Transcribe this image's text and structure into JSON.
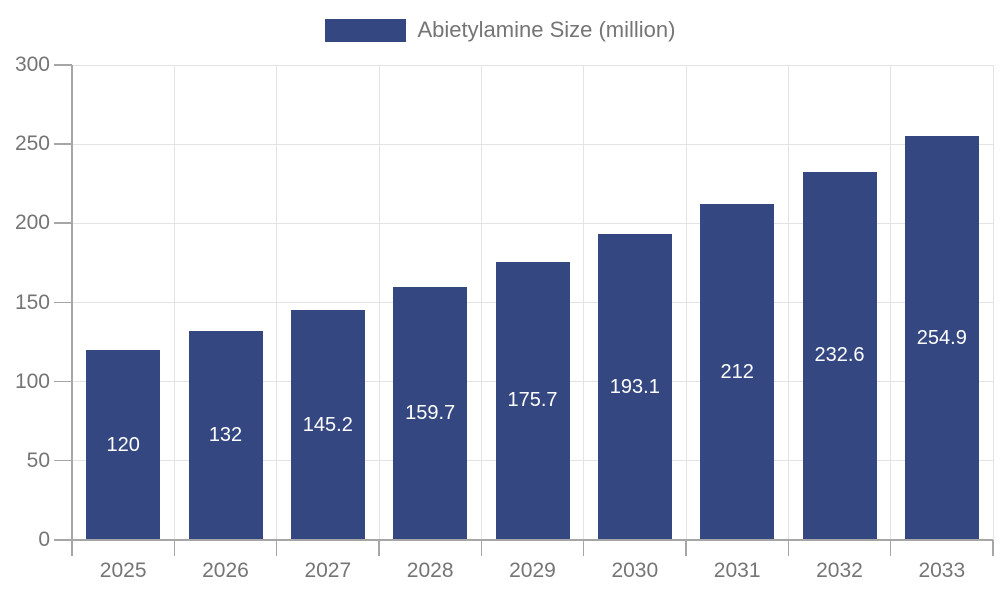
{
  "chart_data": {
    "type": "bar",
    "title": "Abietylamine Size (million)",
    "categories": [
      "2025",
      "2026",
      "2027",
      "2028",
      "2029",
      "2030",
      "2031",
      "2032",
      "2033"
    ],
    "values": [
      120,
      132,
      145.2,
      159.7,
      175.7,
      193.1,
      212,
      232.6,
      254.9
    ],
    "value_labels": [
      "120",
      "132",
      "145.2",
      "159.7",
      "175.7",
      "193.1",
      "212",
      "232.6",
      "254.9"
    ],
    "xlabel": "",
    "ylabel": "",
    "ylim": [
      0,
      300
    ],
    "ytick_step": 50,
    "ytick_labels": [
      "0",
      "50",
      "100",
      "150",
      "200",
      "250",
      "300"
    ],
    "grid": true,
    "legend_position": "top",
    "colors": {
      "bar": "#344780",
      "grid": "#e3e3e3",
      "axis": "#a6a6a6",
      "tick_text": "#757575",
      "bar_label_text": "#ffffff"
    }
  }
}
